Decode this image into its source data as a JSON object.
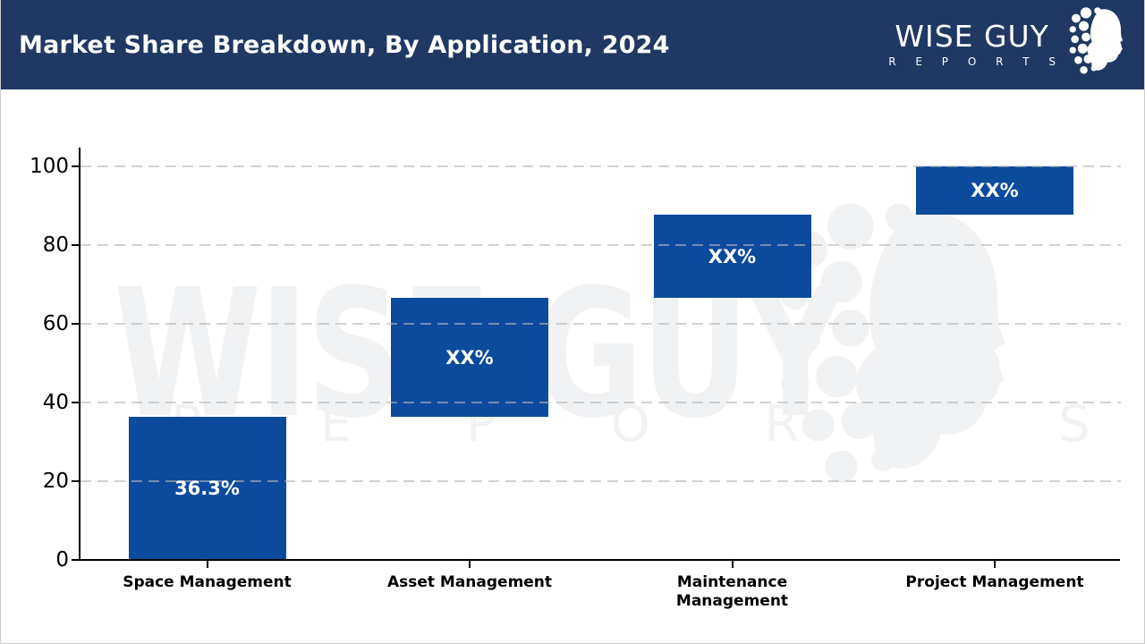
{
  "header": {
    "title": "Market Share Breakdown, By Application, 2024"
  },
  "logo": {
    "line1": "WISE GUY",
    "line2": "R E P O R T S"
  },
  "watermark": {
    "line1": "WISE GUY",
    "line2": "R E P O R T S"
  },
  "chart_data": {
    "type": "bar",
    "variant": "floating-segment-breakdown",
    "title": "Market Share Breakdown, By Application, 2024",
    "xlabel": "",
    "ylabel": "",
    "ylim": [
      0,
      100
    ],
    "yticks": [
      0,
      20,
      40,
      60,
      80,
      100
    ],
    "grid": "dashed-horizontal",
    "legend": "none",
    "categories": [
      "Space Management",
      "Asset Management",
      "Maintenance Management",
      "Project Management"
    ],
    "segments": [
      {
        "category": "Space Management",
        "start": 0,
        "end": 36.3,
        "label": "36.3%"
      },
      {
        "category": "Asset Management",
        "start": 36.3,
        "end": 66.5,
        "label": "XX%"
      },
      {
        "category": "Maintenance Management",
        "start": 66.5,
        "end": 87.8,
        "label": "XX%"
      },
      {
        "category": "Project Management",
        "start": 87.8,
        "end": 100,
        "label": "XX%"
      }
    ]
  },
  "colors": {
    "header_bg": "#1f3864",
    "bar": "#0c4a9e",
    "grid": "#d6d6d6",
    "axis": "#000000",
    "watermark": "#f1f2f4"
  }
}
